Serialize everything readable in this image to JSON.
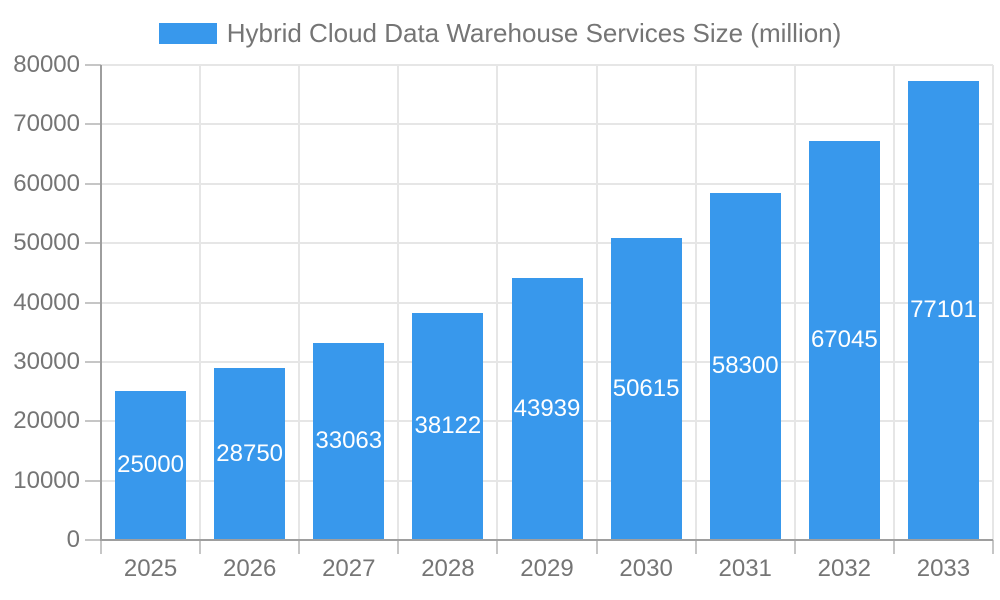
{
  "chart_data": {
    "type": "bar",
    "title": "Hybrid Cloud Data Warehouse Services Size (million)",
    "categories": [
      "2025",
      "2026",
      "2027",
      "2028",
      "2029",
      "2030",
      "2031",
      "2032",
      "2033"
    ],
    "values": [
      25000,
      28750,
      33063,
      38122,
      43939,
      50615,
      58300,
      67045,
      77101
    ],
    "value_labels": [
      "25000",
      "28750",
      "33063",
      "38122",
      "43939",
      "50615",
      "58300",
      "67045",
      "77101"
    ],
    "xlabel": "",
    "ylabel": "",
    "ylim": [
      0,
      80000
    ],
    "ytick_step": 10000,
    "yticks": [
      "0",
      "10000",
      "20000",
      "30000",
      "40000",
      "50000",
      "60000",
      "70000",
      "80000"
    ],
    "grid": true,
    "legend_position": "top"
  },
  "colors": {
    "bar": "#3898EC",
    "grid": "#e6e6e6",
    "axis": "#9e9e9e",
    "tick_mark": "#c6c6c6",
    "text": "#757575",
    "value_label": "#ffffff",
    "background": "#ffffff"
  }
}
